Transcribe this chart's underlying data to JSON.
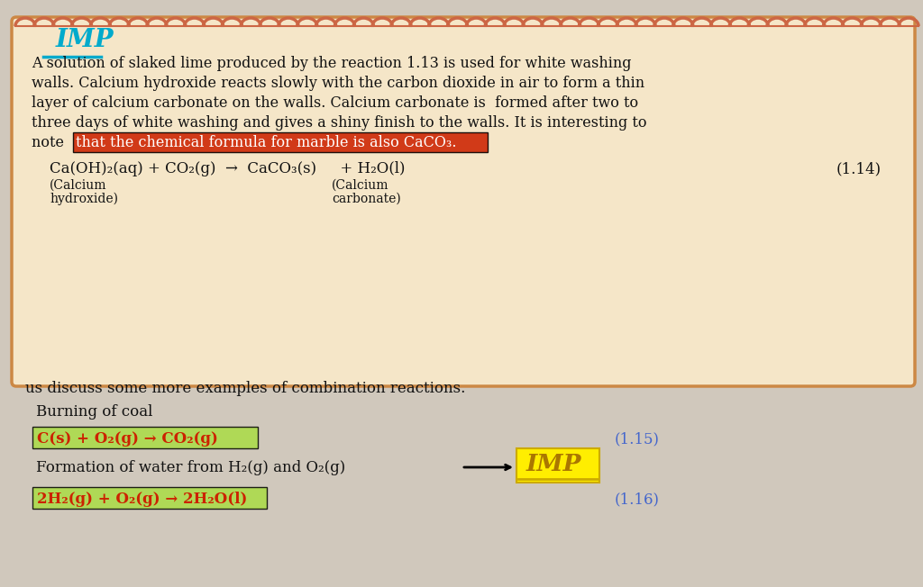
{
  "bg_color": "#f5e6c8",
  "page_bg": "#d0c8bc",
  "title_text": "IMP",
  "title_color": "#00aacc",
  "border_color": "#cc8844",
  "spiral_color": "#cc6644",
  "text_color": "#111111",
  "eq2_highlight": "#aadd44",
  "eq3_highlight": "#aadd44",
  "eq2_color": "#cc2200",
  "eq3_color": "#cc2200",
  "eq2_number": "(1.15)",
  "eq3_number": "(1.16)",
  "imp_label": "IMP",
  "imp_color": "#aa7700",
  "imp_bg": "#ffee00",
  "font_size_main": 11.5,
  "font_size_eq": 12,
  "font_size_section": 12
}
